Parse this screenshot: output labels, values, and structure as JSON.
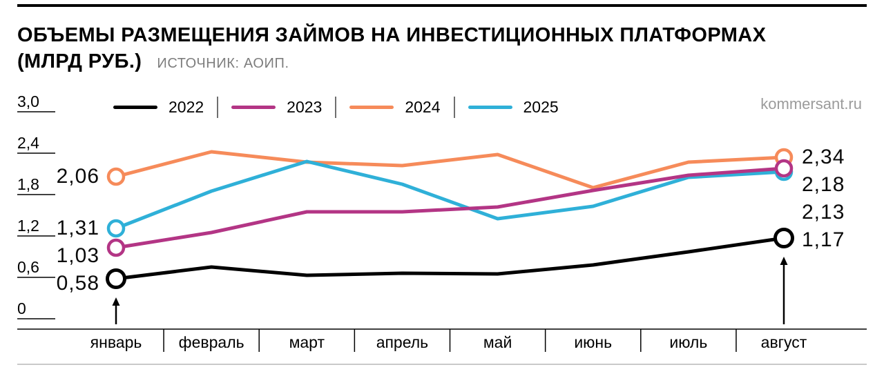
{
  "header": {
    "title_line1": "ОБЪЕМЫ РАЗМЕЩЕНИЯ ЗАЙМОВ НА ИНВЕСТИЦИОННЫХ ПЛАТФОРМАХ",
    "title_line2": "(МЛРД РУБ.)",
    "source": "ИСТОЧНИК: АОИП.",
    "watermark": "kommersant.ru"
  },
  "chart_data": {
    "type": "line",
    "title": "Объемы размещения займов на инвестиционных платформах (млрд руб.)",
    "xlabel": "",
    "ylabel": "млрд руб.",
    "legend_position": "top",
    "grid": false,
    "categories": [
      "январь",
      "февраль",
      "март",
      "апрель",
      "май",
      "июнь",
      "июль",
      "август"
    ],
    "series": [
      {
        "name": "2022",
        "color": "#000000",
        "values": [
          0.58,
          0.75,
          0.63,
          0.66,
          0.65,
          0.78,
          0.97,
          1.17
        ]
      },
      {
        "name": "2023",
        "color": "#b33585",
        "values": [
          1.03,
          1.25,
          1.55,
          1.55,
          1.62,
          1.86,
          2.08,
          2.18
        ]
      },
      {
        "name": "2024",
        "color": "#f68b5a",
        "values": [
          2.06,
          2.42,
          2.27,
          2.22,
          2.38,
          1.9,
          2.27,
          2.34
        ]
      },
      {
        "name": "2025",
        "color": "#2fb0d8",
        "values": [
          1.31,
          1.85,
          2.28,
          1.95,
          1.45,
          1.63,
          2.05,
          2.13
        ]
      }
    ],
    "ylim": [
      0,
      3.0
    ],
    "yticks": [
      0,
      0.6,
      1.2,
      1.8,
      2.4,
      3.0
    ],
    "ytick_labels": [
      "0",
      "0,6",
      "1,2",
      "1,8",
      "2,4",
      "3,0"
    ],
    "annotations": {
      "left": [
        {
          "series": "2024",
          "text": "2,06"
        },
        {
          "series": "2025",
          "text": "1,31"
        },
        {
          "series": "2023",
          "text": "1,03"
        },
        {
          "series": "2022",
          "text": "0,58"
        }
      ],
      "right": [
        {
          "series": "2024",
          "text": "2,34"
        },
        {
          "series": "2023",
          "text": "2,18"
        },
        {
          "series": "2025",
          "text": "2,13"
        },
        {
          "series": "2022",
          "text": "1,17"
        }
      ]
    },
    "arrows": [
      {
        "series": "2022",
        "category_index": 0
      },
      {
        "series": "2022",
        "category_index": 7
      }
    ]
  }
}
